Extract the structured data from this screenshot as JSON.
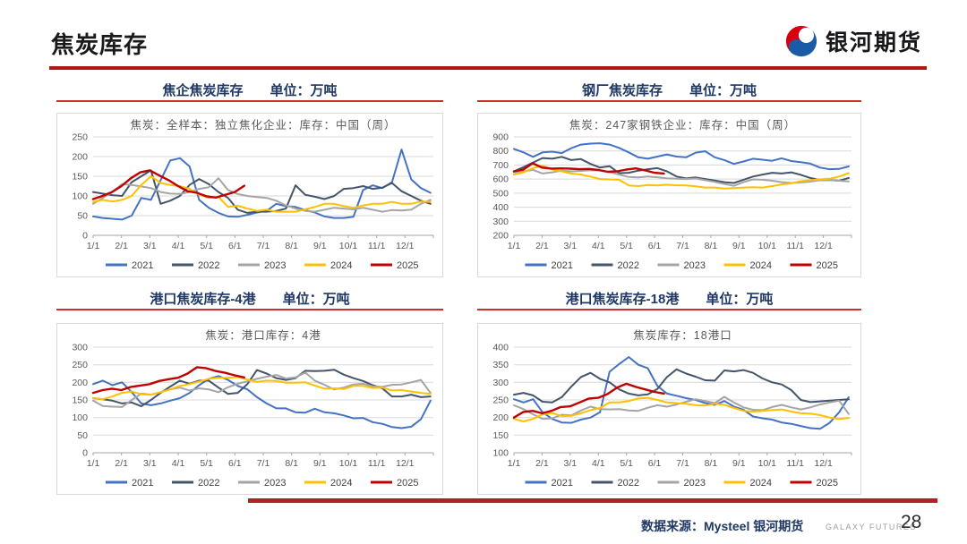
{
  "page": {
    "title": "焦炭库存",
    "logo": {
      "text": "银河期货"
    },
    "footer": {
      "source": "数据来源：Mysteel 银河期货",
      "brand": "GALAXY FUTURES",
      "page_number": "28"
    }
  },
  "colors": {
    "accent_red": "#c00000",
    "header_navy": "#1f3864",
    "grid_line": "#d9d9d9",
    "axis_line": "#a6a6a6",
    "axis_text": "#595959",
    "legend_text": "#404040",
    "logo_red": "#d7000f",
    "logo_blue": "#1a5ba8"
  },
  "chart_data": [
    {
      "type": "line",
      "panel_header": "焦企焦炭库存",
      "unit_label": "单位：万吨",
      "title": "焦炭：全样本：独立焦化企业：库存：中国（周）",
      "ylim": [
        0,
        250
      ],
      "ystep": 50,
      "x_range_months": [
        1,
        13
      ],
      "x_tick_labels": [
        "1/1",
        "2/1",
        "3/1",
        "4/1",
        "5/1",
        "6/1",
        "7/1",
        "8/1",
        "9/1",
        "10/1",
        "11/1",
        "12/1"
      ],
      "grid": true,
      "legend_position": "bottom",
      "series": [
        {
          "name": "2021",
          "color": "#4472c4",
          "x_start": 1,
          "x_end": 12.9,
          "values": [
            48,
            44,
            42,
            40,
            50,
            95,
            90,
            140,
            190,
            196,
            175,
            90,
            70,
            57,
            48,
            47,
            52,
            58,
            62,
            80,
            74,
            72,
            64,
            58,
            48,
            44,
            44,
            47,
            115,
            127,
            120,
            135,
            218,
            142,
            120,
            108
          ]
        },
        {
          "name": "2022",
          "color": "#44546a",
          "x_start": 1,
          "x_end": 12.9,
          "values": [
            110,
            106,
            102,
            100,
            135,
            150,
            165,
            80,
            88,
            100,
            128,
            143,
            130,
            110,
            95,
            65,
            57,
            60,
            60,
            62,
            68,
            127,
            103,
            98,
            92,
            100,
            118,
            120,
            125,
            118,
            121,
            133,
            112,
            100,
            88,
            80
          ]
        },
        {
          "name": "2023",
          "color": "#a5a5a5",
          "x_start": 1,
          "x_end": 12.9,
          "values": [
            80,
            95,
            110,
            130,
            128,
            124,
            120,
            110,
            106,
            105,
            110,
            118,
            122,
            145,
            115,
            105,
            100,
            97,
            95,
            88,
            76,
            68,
            62,
            60,
            65,
            70,
            68,
            66,
            70,
            65,
            60,
            64,
            63,
            65,
            80,
            90
          ]
        },
        {
          "name": "2024",
          "color": "#ffc000",
          "x_start": 1,
          "x_end": 12.9,
          "values": [
            85,
            90,
            86,
            90,
            100,
            128,
            150,
            133,
            128,
            125,
            118,
            103,
            95,
            98,
            72,
            75,
            68,
            62,
            65,
            60,
            60,
            60,
            66,
            72,
            80,
            80,
            74,
            70,
            76,
            80,
            80,
            85,
            80,
            80,
            86,
            85
          ]
        },
        {
          "name": "2025",
          "color": "#c00000",
          "x_start": 1,
          "x_end": 6.33,
          "values": [
            92,
            100,
            110,
            125,
            145,
            160,
            165,
            152,
            140,
            125,
            112,
            108,
            99,
            96,
            103,
            110,
            126
          ]
        }
      ]
    },
    {
      "type": "line",
      "panel_header": "钢厂焦炭库存",
      "unit_label": "单位：万吨",
      "title": "焦炭：247家钢铁企业：库存：中国（周）",
      "ylim": [
        200,
        900
      ],
      "ystep": 100,
      "x_range_months": [
        1,
        13
      ],
      "x_tick_labels": [
        "1/1",
        "2/1",
        "3/1",
        "4/1",
        "5/1",
        "6/1",
        "7/1",
        "8/1",
        "9/1",
        "10/1",
        "11/1",
        "12/1"
      ],
      "grid": true,
      "legend_position": "bottom",
      "series": [
        {
          "name": "2021",
          "color": "#4472c4",
          "x_start": 1,
          "x_end": 12.9,
          "values": [
            815,
            790,
            758,
            790,
            795,
            785,
            820,
            845,
            852,
            855,
            845,
            822,
            790,
            755,
            745,
            760,
            775,
            760,
            755,
            788,
            798,
            755,
            735,
            708,
            725,
            745,
            738,
            730,
            748,
            728,
            720,
            710,
            682,
            670,
            672,
            690
          ]
        },
        {
          "name": "2022",
          "color": "#44546a",
          "x_start": 1,
          "x_end": 12.9,
          "values": [
            655,
            685,
            718,
            750,
            745,
            758,
            735,
            742,
            708,
            682,
            692,
            642,
            645,
            660,
            670,
            678,
            655,
            618,
            605,
            612,
            600,
            590,
            578,
            572,
            595,
            618,
            632,
            645,
            640,
            648,
            630,
            608,
            592,
            594,
            588,
            608
          ]
        },
        {
          "name": "2023",
          "color": "#a5a5a5",
          "x_start": 1,
          "x_end": 12.9,
          "values": [
            648,
            655,
            665,
            640,
            648,
            660,
            655,
            658,
            663,
            662,
            650,
            632,
            615,
            612,
            618,
            613,
            606,
            602,
            600,
            604,
            592,
            580,
            565,
            552,
            578,
            598,
            595,
            588,
            578,
            572,
            576,
            582,
            592,
            594,
            588,
            584
          ]
        },
        {
          "name": "2024",
          "color": "#ffc000",
          "x_start": 1,
          "x_end": 12.9,
          "values": [
            632,
            648,
            678,
            695,
            668,
            655,
            640,
            632,
            618,
            600,
            598,
            595,
            555,
            550,
            558,
            555,
            560,
            556,
            555,
            548,
            540,
            540,
            533,
            536,
            540,
            542,
            540,
            550,
            562,
            570,
            585,
            592,
            598,
            602,
            618,
            642
          ]
        },
        {
          "name": "2025",
          "color": "#c00000",
          "x_start": 1,
          "x_end": 6.33,
          "values": [
            655,
            668,
            712,
            682,
            675,
            676,
            674,
            670,
            672,
            665,
            652,
            655,
            668,
            676,
            662,
            645,
            640
          ]
        }
      ]
    },
    {
      "type": "line",
      "panel_header": "港口焦炭库存-4港",
      "unit_label": "单位：万吨",
      "title": "焦炭：港口库存：4港",
      "ylim": [
        0,
        300
      ],
      "ystep": 50,
      "x_range_months": [
        1,
        13
      ],
      "x_tick_labels": [
        "1/1",
        "2/1",
        "3/1",
        "4/1",
        "5/1",
        "6/1",
        "7/1",
        "8/1",
        "9/1",
        "10/1",
        "11/1",
        "12/1"
      ],
      "grid": true,
      "legend_position": "bottom",
      "series": [
        {
          "name": "2021",
          "color": "#4472c4",
          "x_start": 1,
          "x_end": 12.9,
          "values": [
            195,
            205,
            192,
            200,
            172,
            140,
            135,
            140,
            148,
            155,
            170,
            192,
            210,
            218,
            207,
            190,
            180,
            158,
            140,
            126,
            126,
            115,
            114,
            125,
            115,
            112,
            106,
            98,
            99,
            87,
            82,
            73,
            70,
            74,
            95,
            148
          ]
        },
        {
          "name": "2022",
          "color": "#44546a",
          "x_start": 1,
          "x_end": 12.9,
          "values": [
            155,
            152,
            148,
            140,
            143,
            132,
            150,
            170,
            188,
            205,
            196,
            205,
            205,
            185,
            167,
            170,
            195,
            235,
            225,
            212,
            207,
            212,
            233,
            232,
            233,
            236,
            222,
            212,
            204,
            192,
            183,
            160,
            160,
            165,
            158,
            160
          ]
        },
        {
          "name": "2023",
          "color": "#a5a5a5",
          "x_start": 1,
          "x_end": 12.9,
          "values": [
            148,
            133,
            131,
            130,
            150,
            168,
            165,
            172,
            180,
            185,
            177,
            183,
            180,
            172,
            186,
            196,
            203,
            210,
            216,
            221,
            211,
            214,
            228,
            205,
            193,
            180,
            185,
            194,
            196,
            189,
            187,
            193,
            194,
            200,
            207,
            170
          ]
        },
        {
          "name": "2024",
          "color": "#ffc000",
          "x_start": 1,
          "x_end": 12.9,
          "values": [
            155,
            152,
            160,
            170,
            174,
            166,
            165,
            172,
            180,
            190,
            195,
            202,
            210,
            213,
            213,
            215,
            208,
            201,
            205,
            204,
            199,
            199,
            200,
            191,
            182,
            183,
            181,
            190,
            190,
            184,
            185,
            177,
            178,
            174,
            170,
            167
          ]
        },
        {
          "name": "2025",
          "color": "#c00000",
          "x_start": 1,
          "x_end": 6.33,
          "values": [
            170,
            178,
            182,
            178,
            187,
            191,
            195,
            204,
            209,
            213,
            225,
            243,
            240,
            232,
            227,
            220,
            214
          ]
        }
      ]
    },
    {
      "type": "line",
      "panel_header": "港口焦炭库存-18港",
      "unit_label": "单位：万吨",
      "title": "焦炭库存：18港口",
      "ylim": [
        100,
        400
      ],
      "ystep": 50,
      "x_range_months": [
        1,
        13
      ],
      "x_tick_labels": [
        "1/1",
        "2/1",
        "3/1",
        "4/1",
        "5/1",
        "6/1",
        "7/1",
        "8/1",
        "9/1",
        "10/1",
        "11/1",
        "12/1"
      ],
      "grid": true,
      "legend_position": "bottom",
      "series": [
        {
          "name": "2021",
          "color": "#4472c4",
          "x_start": 1,
          "x_end": 12.9,
          "values": [
            252,
            243,
            252,
            215,
            196,
            186,
            185,
            194,
            200,
            215,
            330,
            352,
            372,
            350,
            340,
            290,
            268,
            262,
            255,
            250,
            241,
            236,
            247,
            231,
            222,
            203,
            198,
            194,
            186,
            182,
            176,
            170,
            168,
            185,
            215,
            258
          ]
        },
        {
          "name": "2022",
          "color": "#44546a",
          "x_start": 1,
          "x_end": 12.9,
          "values": [
            265,
            270,
            263,
            245,
            243,
            258,
            288,
            315,
            327,
            310,
            300,
            280,
            268,
            263,
            266,
            281,
            315,
            337,
            325,
            316,
            306,
            305,
            334,
            331,
            335,
            327,
            311,
            300,
            294,
            278,
            250,
            244,
            246,
            248,
            250,
            252
          ]
        },
        {
          "name": "2023",
          "color": "#a5a5a5",
          "x_start": 1,
          "x_end": 12.9,
          "values": [
            235,
            224,
            209,
            196,
            198,
            208,
            206,
            220,
            231,
            224,
            223,
            224,
            220,
            219,
            228,
            235,
            231,
            237,
            245,
            252,
            247,
            241,
            259,
            243,
            229,
            222,
            221,
            230,
            236,
            229,
            223,
            229,
            237,
            243,
            248,
            210
          ]
        },
        {
          "name": "2024",
          "color": "#ffc000",
          "x_start": 1,
          "x_end": 12.9,
          "values": [
            196,
            189,
            196,
            209,
            213,
            204,
            205,
            212,
            221,
            227,
            243,
            243,
            247,
            254,
            256,
            250,
            243,
            241,
            239,
            235,
            234,
            239,
            236,
            227,
            219,
            217,
            219,
            221,
            223,
            217,
            212,
            211,
            207,
            200,
            196,
            199
          ]
        },
        {
          "name": "2025",
          "color": "#c00000",
          "x_start": 1,
          "x_end": 6.33,
          "values": [
            200,
            216,
            219,
            212,
            219,
            230,
            232,
            243,
            254,
            256,
            267,
            285,
            296,
            287,
            280,
            273,
            268
          ]
        }
      ]
    }
  ]
}
